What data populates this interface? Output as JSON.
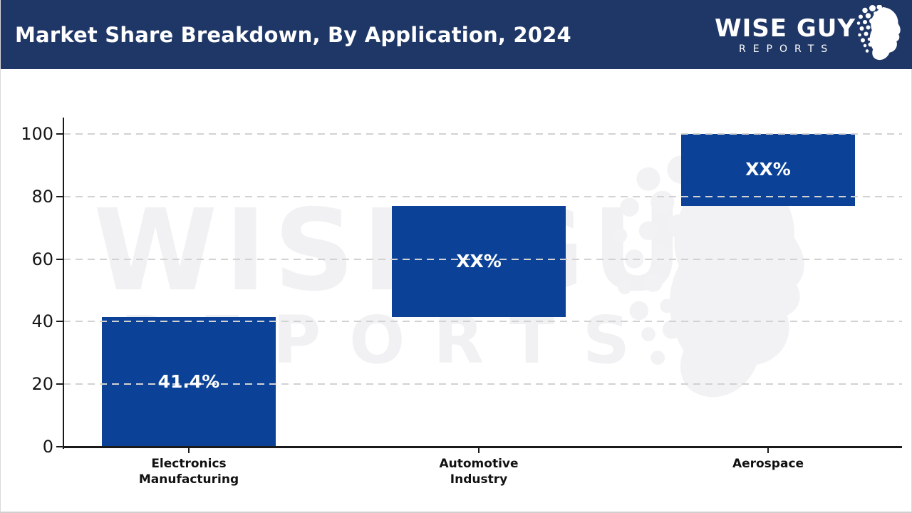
{
  "header": {
    "title": "Market Share Breakdown, By Application, 2024"
  },
  "logo": {
    "line1": "WISE GUY",
    "line2": "REPORTS"
  },
  "watermark": {
    "line1": "WISE GUY",
    "line2": "REPORTS"
  },
  "chart_data": {
    "type": "bar",
    "subtype": "stacked-waterfall",
    "title": "Market Share Breakdown, By Application, 2024",
    "categories": [
      "Electronics\nManufacturing",
      "Automotive\nIndustry",
      "Aerospace"
    ],
    "segments": [
      {
        "category": "Electronics\nManufacturing",
        "start": 0,
        "end": 41.4,
        "label": "41.4%"
      },
      {
        "category": "Automotive\nIndustry",
        "start": 41.4,
        "end": 77,
        "label": "XX%"
      },
      {
        "category": "Aerospace",
        "start": 77,
        "end": 100,
        "label": "XX%"
      }
    ],
    "yticks": [
      0,
      20,
      40,
      60,
      80,
      100
    ],
    "ylim": [
      0,
      105
    ],
    "xlabel": "",
    "ylabel": "",
    "legend": "none",
    "grid": "horizontal dashed, drawn over bars",
    "bar_color": "#0b4298",
    "bar_label_color": "#ffffff"
  },
  "colors": {
    "header_bg": "#1f3767",
    "bar": "#0b4298",
    "grid": "#d2d2d2",
    "axis": "#1a1a1a",
    "watermark": "#f1f1f3",
    "page_border": "#d9d9d9"
  }
}
